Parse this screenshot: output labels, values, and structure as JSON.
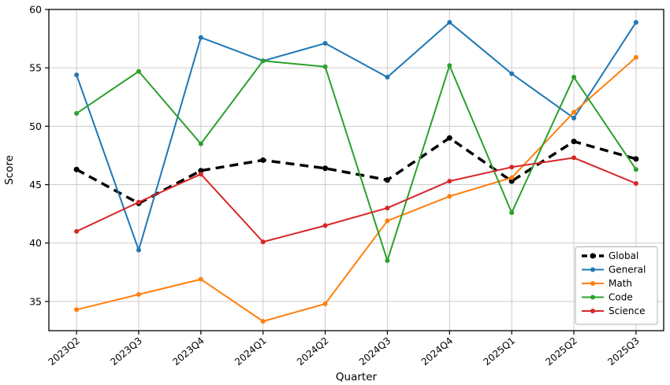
{
  "chart_data": {
    "type": "line",
    "title": "",
    "xlabel": "Quarter",
    "ylabel": "Score",
    "categories": [
      "2023Q2",
      "2023Q3",
      "2023Q4",
      "2024Q1",
      "2024Q2",
      "2024Q3",
      "2024Q4",
      "2025Q1",
      "2025Q2",
      "2025Q3"
    ],
    "ylim": [
      32.5,
      60
    ],
    "yticks": [
      35,
      40,
      45,
      50,
      55,
      60
    ],
    "grid": true,
    "grid_color": "#cccccc",
    "background": "#ffffff",
    "legend_position": "lower right",
    "series": [
      {
        "name": "Global",
        "color": "#000000",
        "dash": "dashed",
        "line_width": 3.5,
        "marker_radius": 3.5,
        "values": [
          46.3,
          43.4,
          46.2,
          47.1,
          46.4,
          45.4,
          49.0,
          45.3,
          48.7,
          47.2
        ]
      },
      {
        "name": "General",
        "color": "#1f77b4",
        "dash": "solid",
        "line_width": 2,
        "marker_radius": 3,
        "values": [
          54.4,
          39.4,
          57.6,
          55.6,
          57.1,
          54.2,
          58.9,
          54.5,
          50.7,
          58.9
        ]
      },
      {
        "name": "Math",
        "color": "#ff7f0e",
        "dash": "solid",
        "line_width": 2,
        "marker_radius": 3,
        "values": [
          34.3,
          35.6,
          36.9,
          33.3,
          34.8,
          41.9,
          44.0,
          45.6,
          51.2,
          55.9
        ]
      },
      {
        "name": "Code",
        "color": "#2ca02c",
        "dash": "solid",
        "line_width": 2,
        "marker_radius": 3,
        "values": [
          51.1,
          54.7,
          48.5,
          55.6,
          55.1,
          38.5,
          55.2,
          42.6,
          54.2,
          46.3
        ]
      },
      {
        "name": "Science",
        "color": "#d62728",
        "dash": "solid",
        "line_width": 2,
        "marker_radius": 3,
        "values": [
          41.0,
          43.5,
          45.9,
          40.1,
          41.5,
          43.0,
          45.3,
          46.5,
          47.3,
          45.1
        ]
      }
    ]
  }
}
